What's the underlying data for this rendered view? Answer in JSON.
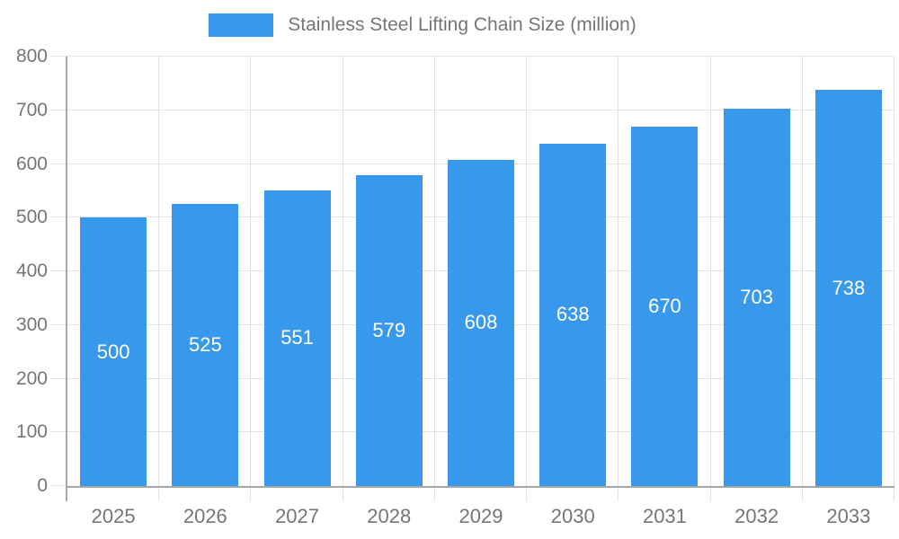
{
  "chart_data": {
    "type": "bar",
    "categories": [
      "2025",
      "2026",
      "2027",
      "2028",
      "2029",
      "2030",
      "2031",
      "2032",
      "2033"
    ],
    "values": [
      500,
      525,
      551,
      579,
      608,
      638,
      670,
      703,
      738
    ],
    "legend": "Stainless Steel Lifting Chain Size (million)",
    "title": "",
    "xlabel": "",
    "ylabel": "",
    "ylim": [
      0,
      800
    ],
    "ytick_step": 100,
    "grid": true,
    "legend_position": "top",
    "value_labels": "inside-center",
    "colors": {
      "bar": "#3899EC",
      "bar_value_text": "#ffffff",
      "axis_line": "#A6A6A6",
      "gridline": "#E2E2E2",
      "tick_text": "#757575"
    }
  }
}
